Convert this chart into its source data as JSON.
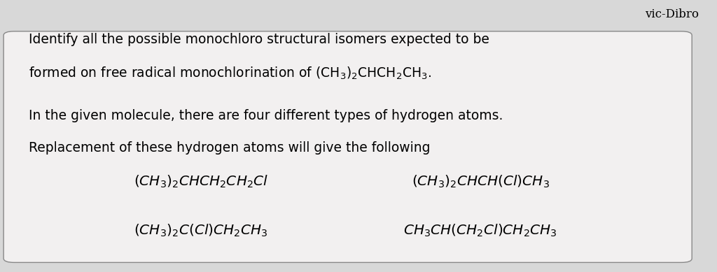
{
  "bg_color": "#d8d8d8",
  "box_facecolor": "#f2f0f0",
  "box_edge_color": "#888888",
  "line1": "Identify all the possible monochloro structural isomers expected to be",
  "line2": "formed on free radical monochlorination of $(\\mathregular{CH_3})_2\\mathregular{CHCH_2CH_3}$.",
  "line3": "In the given molecule, there are four different types of hydrogen atoms.",
  "line4": "Replacement of these hydrogen atoms will give the following",
  "f1": "$(\\mathregular{CH_3})_2\\mathregular{CHCH_2CH_2Cl}$",
  "f2": "$(\\mathregular{CH_3})_2\\mathregular{CHCH(Cl)CH_3}$",
  "f3": "$(\\mathregular{CH_3})_2\\mathregular{C(Cl)CH_2CH_3}$",
  "f4": "$\\mathregular{CH_3CH(CH_2Cl)CH_2CH_3}$",
  "top_label": "vic-Dibro",
  "font_size_body": 13.5,
  "font_size_formula": 14.5,
  "font_size_top": 12
}
